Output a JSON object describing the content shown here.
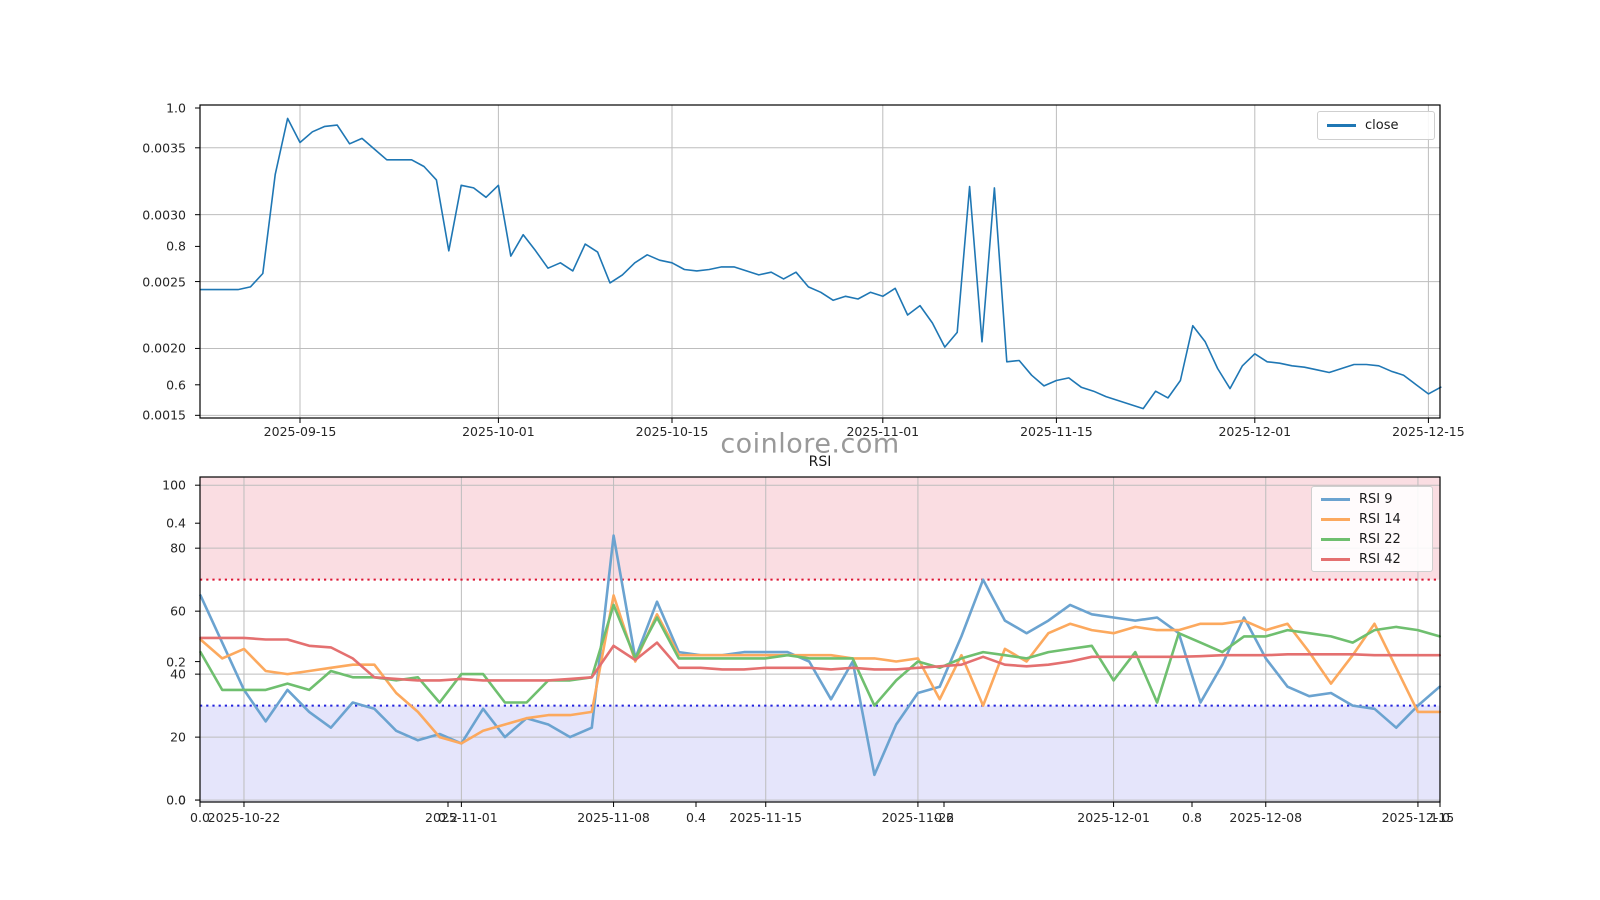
{
  "watermark": "coinlore.com",
  "price_chart": {
    "legend": [
      "close"
    ],
    "y_tick_labels": [
      "0.0015",
      "0.0020",
      "0.0025",
      "0.0030",
      "0.0035"
    ],
    "y_tick_values": [
      0.0015,
      0.002,
      0.0025,
      0.003,
      0.0035
    ],
    "x_tick_labels": [
      "2025-09-15",
      "2025-10-01",
      "2025-10-15",
      "2025-11-01",
      "2025-11-15",
      "2025-12-01",
      "2025-12-15"
    ]
  },
  "rsi_chart": {
    "title": "RSI",
    "legend": [
      "RSI 9",
      "RSI 14",
      "RSI 22",
      "RSI 42"
    ],
    "y_tick_labels": [
      "0",
      "20",
      "40",
      "60",
      "80",
      "100"
    ],
    "y_tick_values": [
      0,
      20,
      40,
      60,
      80,
      100
    ],
    "x_tick_labels": [
      "2025-10-22",
      "2025-11-01",
      "2025-11-08",
      "2025-11-15",
      "2025-11-22",
      "2025-12-01",
      "2025-12-08",
      "2025-12-15"
    ],
    "overbought_level": 70,
    "oversold_level": 30
  },
  "overlay_axis": {
    "x_tick_labels": [
      "0.0",
      "0.2",
      "0.4",
      "0.6",
      "0.8",
      "1.0"
    ],
    "y_tick_labels": [
      "1.0",
      "0.8",
      "0.6",
      "0.4",
      "0.2",
      "0.0"
    ]
  },
  "colors": {
    "grid": "#bdbdbd",
    "spine": "#000000",
    "overbought_band": "#fadde2",
    "oversold_band": "#e5e5fb",
    "overbought_line": "#dc1432",
    "oversold_line": "#2222dd",
    "watermark": "#8e8e8e"
  },
  "chart_data": [
    {
      "type": "line",
      "title": "",
      "start_date": "2025-09-07",
      "freq_days": 1,
      "ylim": [
        0.00148,
        0.00382
      ],
      "grid": true,
      "legend_position": "upper right",
      "x_ticks": [
        "2025-09-15",
        "2025-10-01",
        "2025-10-15",
        "2025-11-01",
        "2025-11-15",
        "2025-12-01",
        "2025-12-15"
      ],
      "y_ticks": [
        0.0015,
        0.002,
        0.0025,
        0.003,
        0.0035
      ],
      "series": [
        {
          "name": "close",
          "color": "#1f77b4",
          "width": 1.6,
          "values": [
            0.00244,
            0.00244,
            0.00244,
            0.00244,
            0.00246,
            0.00256,
            0.0033,
            0.00372,
            0.00354,
            0.00362,
            0.00366,
            0.00367,
            0.00353,
            0.00357,
            0.00349,
            0.00341,
            0.00341,
            0.00341,
            0.00336,
            0.00326,
            0.00273,
            0.00322,
            0.0032,
            0.00313,
            0.00322,
            0.00269,
            0.00285,
            0.00273,
            0.0026,
            0.00264,
            0.00258,
            0.00278,
            0.00272,
            0.00249,
            0.00255,
            0.00264,
            0.0027,
            0.00266,
            0.00264,
            0.00259,
            0.00258,
            0.00259,
            0.00261,
            0.00261,
            0.00258,
            0.00255,
            0.00257,
            0.00252,
            0.00257,
            0.00246,
            0.00242,
            0.00236,
            0.00239,
            0.00237,
            0.00242,
            0.00239,
            0.00245,
            0.00225,
            0.00232,
            0.00219,
            0.00201,
            0.00212,
            0.00321,
            0.00205,
            0.0032,
            0.0019,
            0.00191,
            0.0018,
            0.00172,
            0.00176,
            0.00178,
            0.00171,
            0.00168,
            0.00164,
            0.00161,
            0.00158,
            0.00155,
            0.00168,
            0.00163,
            0.00176,
            0.00217,
            0.00205,
            0.00185,
            0.0017,
            0.00187,
            0.00196,
            0.0019,
            0.00189,
            0.00187,
            0.00186,
            0.00184,
            0.00182,
            0.00185,
            0.00188,
            0.00188,
            0.00187,
            0.00183,
            0.0018,
            0.00173,
            0.00166,
            0.00171
          ]
        }
      ]
    },
    {
      "type": "line",
      "title": "RSI",
      "start_date": "2025-10-20",
      "freq_days": 1,
      "ylim": [
        -0.6,
        102.6
      ],
      "grid": true,
      "legend_position": "upper right",
      "x_ticks": [
        "2025-10-22",
        "2025-11-01",
        "2025-11-08",
        "2025-11-15",
        "2025-11-22",
        "2025-12-01",
        "2025-12-08",
        "2025-12-15"
      ],
      "y_ticks": [
        0,
        20,
        40,
        60,
        80,
        100
      ],
      "bands": [
        {
          "from": 70,
          "to": 102.6,
          "color": "#fadde2",
          "label": "overbought"
        },
        {
          "from": -0.6,
          "to": 30,
          "color": "#e5e5fb",
          "label": "oversold"
        }
      ],
      "ref_lines": [
        {
          "y": 70,
          "color": "#dc1432",
          "style": "dotted"
        },
        {
          "y": 30,
          "color": "#2222dd",
          "style": "dotted"
        }
      ],
      "series": [
        {
          "name": "RSI 9",
          "color": "#6ba3d0",
          "width": 2.6,
          "values": [
            65,
            50,
            35,
            25,
            35,
            28,
            23,
            31,
            29,
            22,
            19,
            21,
            18,
            29,
            20,
            26,
            24,
            20,
            23,
            84,
            45,
            63,
            47,
            46,
            46,
            47,
            47,
            47,
            44,
            32,
            44,
            8,
            24,
            34,
            36,
            52,
            70,
            57,
            53,
            57,
            62,
            59,
            58,
            57,
            58,
            53,
            31,
            43,
            58,
            45,
            36,
            33,
            34,
            30,
            29,
            23,
            30,
            36
          ]
        },
        {
          "name": "RSI 14",
          "color": "#fca95e",
          "width": 2.6,
          "values": [
            51,
            45,
            48,
            41,
            40,
            41,
            42,
            43,
            43,
            34,
            28,
            20,
            18,
            22,
            24,
            26,
            27,
            27,
            28,
            65,
            44,
            59,
            46,
            46,
            46,
            46,
            46,
            46,
            46,
            46,
            45,
            45,
            44,
            45,
            32,
            46,
            30,
            48,
            44,
            53,
            56,
            54,
            53,
            55,
            54,
            54,
            56,
            56,
            57,
            54,
            56,
            47,
            37,
            46,
            56,
            42,
            28,
            28
          ]
        },
        {
          "name": "RSI 22",
          "color": "#6fbf6f",
          "width": 2.6,
          "values": [
            47,
            35,
            35,
            35,
            37,
            35,
            41,
            39,
            39,
            38,
            39,
            31,
            40,
            40,
            31,
            31,
            38,
            38,
            39,
            62,
            45,
            58,
            45,
            45,
            45,
            45,
            45,
            46,
            45,
            45,
            45,
            30,
            38,
            44,
            42,
            45,
            47,
            46,
            45,
            47,
            48,
            49,
            38,
            47,
            31,
            53,
            50,
            47,
            52,
            52,
            54,
            53,
            52,
            50,
            54,
            55,
            54,
            52
          ]
        },
        {
          "name": "RSI 42",
          "color": "#e47070",
          "width": 2.6,
          "values": [
            51.5,
            51.5,
            51.5,
            51,
            51,
            49,
            48.5,
            45,
            39,
            38.5,
            38,
            38,
            38.5,
            38,
            38,
            38,
            38,
            38.5,
            39,
            49,
            44.5,
            50,
            42,
            42,
            41.5,
            41.5,
            42,
            42,
            42,
            41.5,
            42,
            41.5,
            41.5,
            42,
            42.5,
            43,
            45.5,
            43,
            42.5,
            43,
            44,
            45.5,
            45.5,
            45.5,
            45.5,
            45.5,
            45.7,
            46,
            46,
            46,
            46.3,
            46.3,
            46.3,
            46.3,
            46,
            46,
            46,
            46
          ]
        }
      ]
    }
  ]
}
